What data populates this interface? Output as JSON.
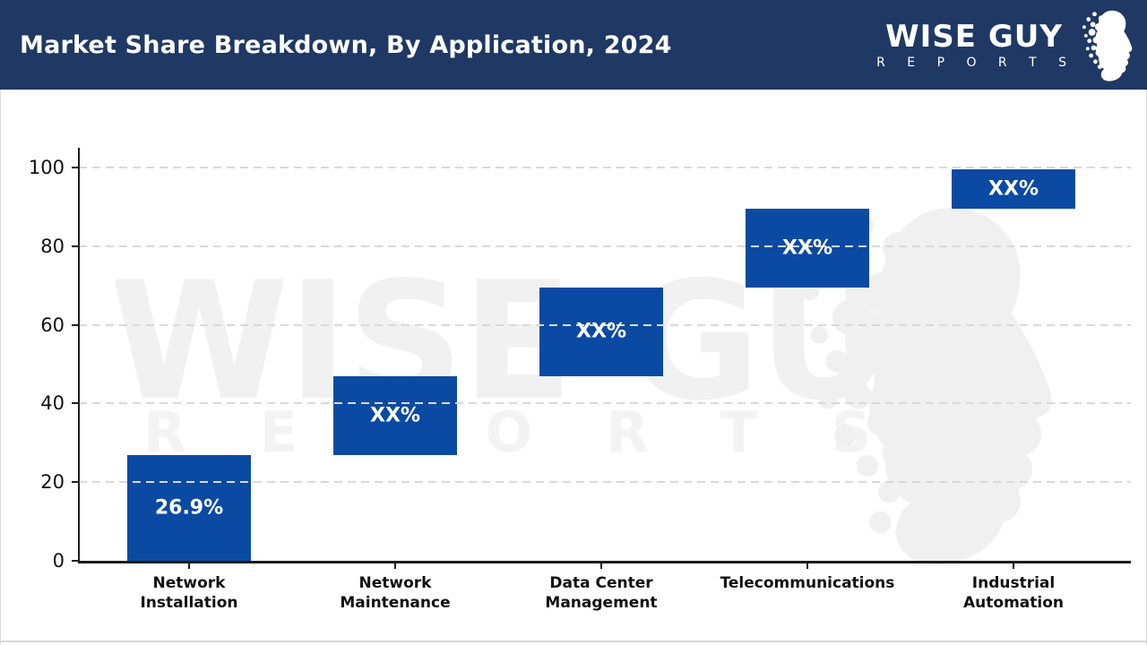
{
  "header": {
    "title": "Market Share Breakdown, By Application, 2024",
    "bg_color": "#1f3864",
    "logo": {
      "name": "WISE GUY",
      "tagline": "R E P O R T S"
    }
  },
  "watermark": {
    "line1": "WISE GUY",
    "line2": "REPORTS"
  },
  "chart_data": {
    "type": "bar",
    "subtype": "waterfall",
    "title": "Market Share Breakdown, By Application, 2024",
    "categories": [
      "Network\nInstallation",
      "Network\nMaintenance",
      "Data Center\nManagement",
      "Telecommunications",
      "Industrial\nAutomation"
    ],
    "series": [
      {
        "name": "Market Share",
        "segments": [
          {
            "category": "Network Installation",
            "start": 0,
            "end": 26.9,
            "label": "26.9%"
          },
          {
            "category": "Network Maintenance",
            "start": 26.9,
            "end": 47.0,
            "label": "XX%"
          },
          {
            "category": "Data Center Management",
            "start": 47.0,
            "end": 69.5,
            "label": "XX%"
          },
          {
            "category": "Telecommunications",
            "start": 69.5,
            "end": 89.5,
            "label": "XX%"
          },
          {
            "category": "Industrial Automation",
            "start": 89.5,
            "end": 99.5,
            "label": "XX%"
          }
        ]
      }
    ],
    "y_ticks": [
      0,
      20,
      40,
      60,
      80,
      100
    ],
    "ylim": [
      0,
      105
    ],
    "xlabel": "",
    "ylabel": "",
    "grid": true,
    "grid_style": "dashed",
    "legend_position": "none",
    "bar_color": "#0b4aa2",
    "bar_label_color": "#ffffff",
    "axis_color": "#1c1c1c",
    "grid_color": "#d9d9d9"
  }
}
